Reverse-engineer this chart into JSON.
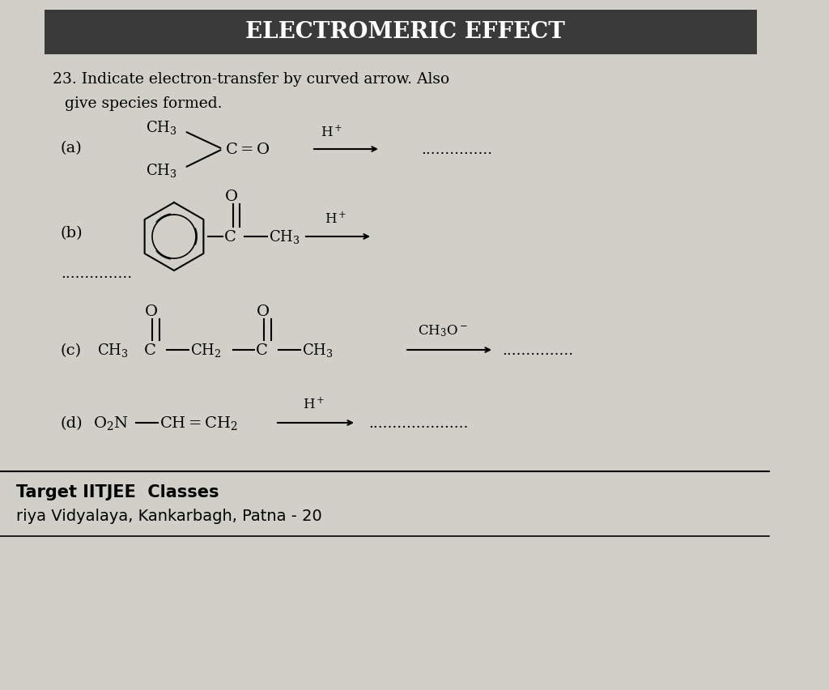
{
  "title": "ELECTROMERIC EFFECT",
  "title_bg": "#4a4a4a",
  "title_color": "#ffffff",
  "bg_color": "#d0cfc8",
  "question_text": "23. Indicate electron-transfer by curved arrow. Also",
  "question_text2": "give species formed.",
  "footer_line1": "Target IITJEE  Classes",
  "footer_line2": "riya Vidyalaya, Kankarbagh, Patna - 20",
  "part_a_label": "(a)",
  "part_b_label": "(b)",
  "part_c_label": "(c)",
  "part_d_label": "(d)"
}
